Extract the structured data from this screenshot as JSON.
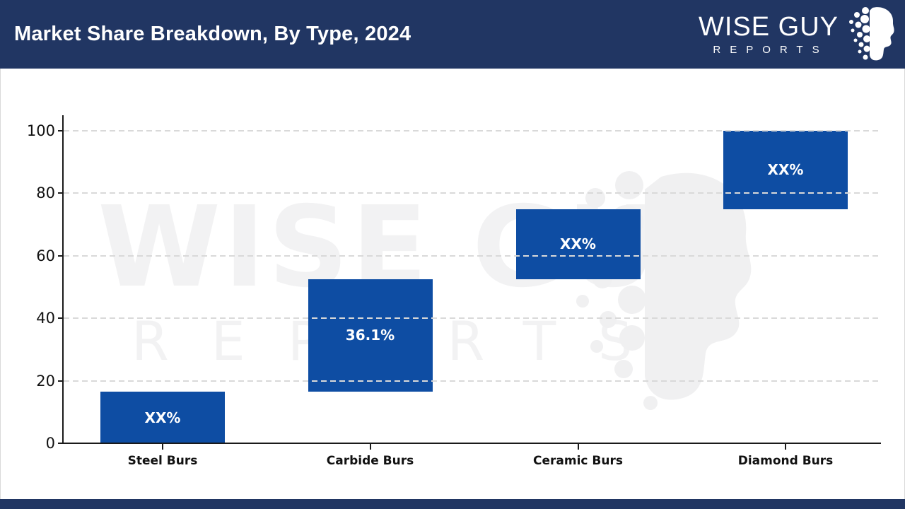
{
  "header": {
    "title": "Market Share Breakdown, By Type, 2024",
    "brand_line1": "WISE GUY",
    "brand_line2": "REPORTS"
  },
  "watermark": {
    "line1": "WISE GUY",
    "line2": "REPORTS"
  },
  "chart_data": {
    "type": "bar",
    "subtype": "waterfall (floating segment bars)",
    "title": "Market Share Breakdown, By Type, 2024",
    "categories": [
      "Steel Burs",
      "Carbide Burs",
      "Ceramic Burs",
      "Diamond Burs"
    ],
    "segments": [
      {
        "category": "Steel Burs",
        "start": 0,
        "end": 16.5,
        "label": "XX%"
      },
      {
        "category": "Carbide Burs",
        "start": 16.5,
        "end": 52.6,
        "label": "36.1%"
      },
      {
        "category": "Ceramic Burs",
        "start": 52.6,
        "end": 74.9,
        "label": "XX%"
      },
      {
        "category": "Diamond Burs",
        "start": 74.9,
        "end": 100,
        "label": "XX%"
      }
    ],
    "y_ticks": [
      0,
      20,
      40,
      60,
      80,
      100
    ],
    "ylim": [
      0,
      105
    ],
    "xlabel": "",
    "ylabel": "",
    "grid": "horizontal dashed, drawn over bars",
    "legend": "none",
    "bar_color": "#0e4da3",
    "bar_label_color": "#ffffff",
    "axis_color": "#1a1a1a",
    "grid_color": "#d9d9d9"
  },
  "colors": {
    "header_bg": "#213663",
    "footer_bg": "#213663",
    "bar_blue": "#0e4da3",
    "watermark_gray": "#f2f2f3",
    "title_text": "#ffffff"
  }
}
